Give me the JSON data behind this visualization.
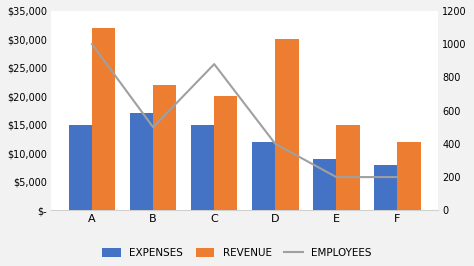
{
  "categories": [
    "A",
    "B",
    "C",
    "D",
    "E",
    "F"
  ],
  "expenses": [
    15000,
    17000,
    15000,
    12000,
    9000,
    8000
  ],
  "revenue": [
    32000,
    22000,
    20000,
    30000,
    15000,
    12000
  ],
  "employees": [
    1000,
    500,
    880,
    400,
    200,
    200
  ],
  "bar_color_expenses": "#4472C4",
  "bar_color_revenue": "#ED7D31",
  "line_color_employees": "#A0A0A0",
  "ylim_left": [
    0,
    35000
  ],
  "ylim_right": [
    0,
    1200
  ],
  "yticks_left": [
    0,
    5000,
    10000,
    15000,
    20000,
    25000,
    30000,
    35000
  ],
  "yticks_right": [
    0,
    200,
    400,
    600,
    800,
    1000,
    1200
  ],
  "legend_labels": [
    "EXPENSES",
    "REVENUE",
    "EMPLOYEES"
  ],
  "bg_color": "#f2f2f2",
  "plot_bg_color": "#ffffff",
  "grid_color": "#ffffff",
  "bar_width": 0.38,
  "figsize": [
    4.74,
    2.66
  ],
  "dpi": 100
}
